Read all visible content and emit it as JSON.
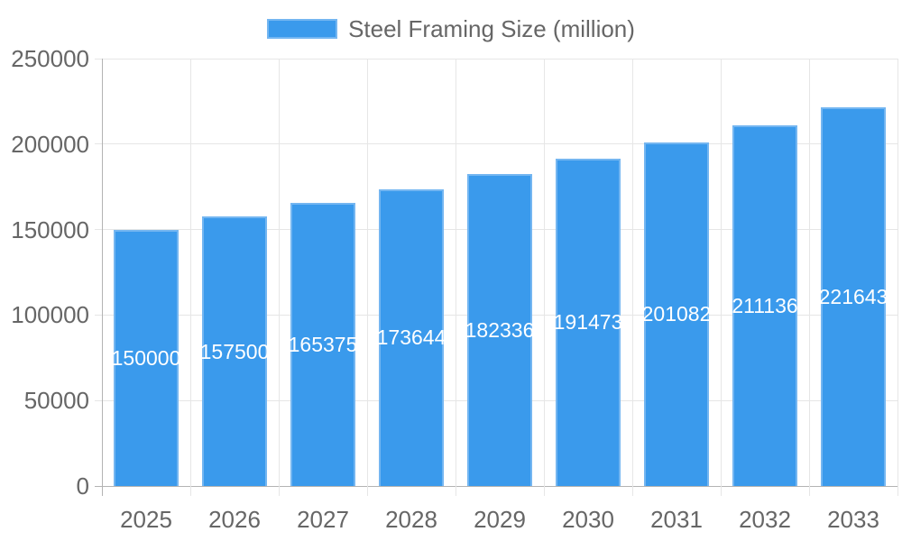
{
  "legend": {
    "label": "Steel Framing Size (million)"
  },
  "chart_data": {
    "type": "bar",
    "title": "Steel Framing Size (million)",
    "categories": [
      "2025",
      "2026",
      "2027",
      "2028",
      "2029",
      "2030",
      "2031",
      "2032",
      "2033"
    ],
    "values": [
      150000,
      157500,
      165375,
      173644,
      182336,
      191473,
      201082,
      211136,
      221643
    ],
    "value_labels": [
      "150000",
      "157500",
      "165375",
      "173644",
      "182336",
      "191473",
      "201082",
      "211136",
      "221643"
    ],
    "y_ticks": [
      "0",
      "50000",
      "100000",
      "150000",
      "200000",
      "250000"
    ],
    "y_tick_values": [
      0,
      50000,
      100000,
      150000,
      200000,
      250000
    ],
    "ylim": [
      0,
      250000
    ],
    "xlabel": "",
    "ylabel": "",
    "grid": true,
    "legend_position": "top-center",
    "colors": {
      "bar_fill": "#3A9AEC",
      "bar_border": "#74B6F1",
      "grid_line": "#E6E6E6",
      "axis_line": "#B3B3B3",
      "tick_text": "#666666",
      "value_label_text": "#FFFFFF",
      "background": "#FFFFFF"
    }
  }
}
